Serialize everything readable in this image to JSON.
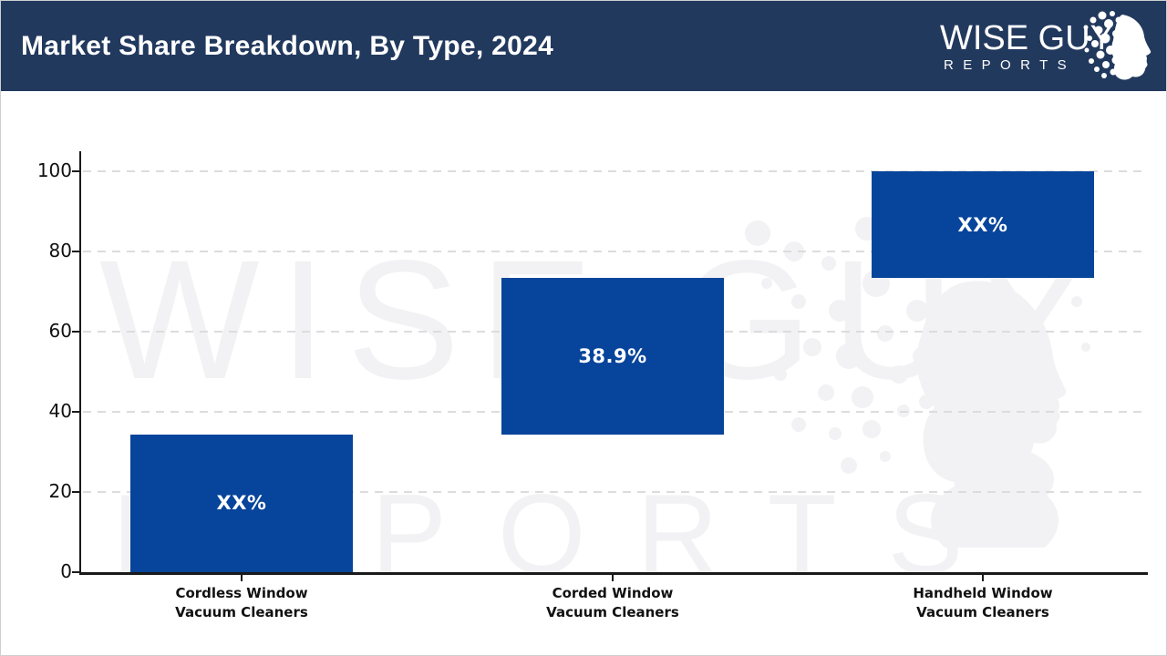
{
  "header": {
    "title": "Market Share Breakdown, By Type, 2024",
    "logo": {
      "name": "WISE GUY",
      "tagline": "REPORTS"
    }
  },
  "watermark": {
    "wordmark": "WISE GUY",
    "tagline": "REPORTS"
  },
  "colors": {
    "header_bg": "#22395E",
    "header_text": "#FFFFFF",
    "bar": "#07449B",
    "bar_label": "#FFFFFF",
    "grid": "#DCDCDC",
    "axis": "#1A1A1A",
    "watermark": "#F2F2F4",
    "background": "#FFFFFF"
  },
  "chart_data": {
    "type": "bar",
    "variant": "waterfall",
    "title": "Market Share Breakdown, By Type, 2024",
    "x_categories": [
      "Cordless Window\nVacuum Cleaners",
      "Corded Window\nVacuum Cleaners",
      "Handheld Window\nVacuum Cleaners"
    ],
    "segments": [
      {
        "category": "Cordless Window Vacuum Cleaners",
        "start": 0,
        "end": 34.4,
        "label": "XX%"
      },
      {
        "category": "Corded Window Vacuum Cleaners",
        "start": 34.4,
        "end": 73.3,
        "label": "38.9%"
      },
      {
        "category": "Handheld Window Vacuum Cleaners",
        "start": 73.3,
        "end": 100,
        "label": "XX%"
      }
    ],
    "yticks": [
      0,
      20,
      40,
      60,
      80,
      100
    ],
    "ylim": [
      0,
      104.8
    ],
    "xlabel": "",
    "ylabel": "",
    "grid": {
      "axis": "y",
      "style": "dashed",
      "on": true
    },
    "legend": "none"
  }
}
